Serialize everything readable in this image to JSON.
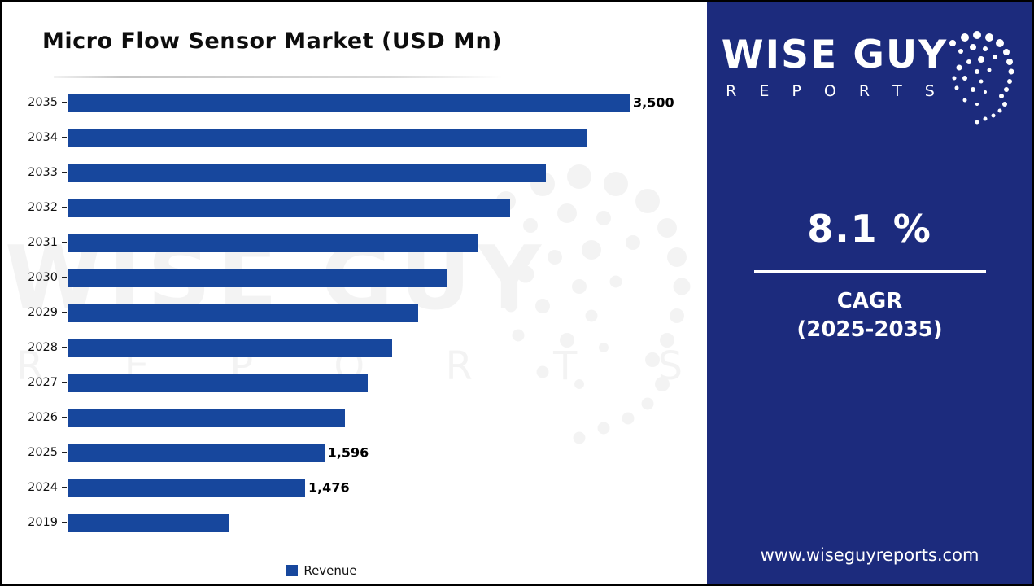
{
  "chart": {
    "title": "Micro Flow Sensor Market (USD Mn)",
    "legend_label": "Revenue"
  },
  "chart_data": {
    "type": "bar",
    "orientation": "horizontal",
    "title": "Micro Flow Sensor Market (USD Mn)",
    "xlabel": "",
    "ylabel": "",
    "categories": [
      "2035",
      "2034",
      "2033",
      "2032",
      "2031",
      "2030",
      "2029",
      "2028",
      "2027",
      "2026",
      "2025",
      "2024",
      "2019"
    ],
    "values": [
      3500,
      3238,
      2979,
      2756,
      2549,
      2358,
      2181,
      2017,
      1866,
      1725,
      1596,
      1476,
      1000
    ],
    "data_labels": [
      "3,500",
      "",
      "",
      "",
      "",
      "",
      "",
      "",
      "",
      "",
      "1,596",
      "1,476",
      ""
    ],
    "xlim": [
      0,
      3500
    ],
    "grid": false,
    "bar_color": "#17479d",
    "legend": [
      "Revenue"
    ],
    "legend_position": "bottom"
  },
  "sidebar": {
    "background": "#1c2b7d",
    "logo_line1": "WISE GUY",
    "logo_line2": "R E P O R T S",
    "cagr_value": "8.1 %",
    "cagr_label_line1": "CAGR",
    "cagr_label_line2": "(2025-2035)",
    "website": "www.wiseguyreports.com"
  },
  "watermark": {
    "line1": "WISE GUY",
    "line2": "R E P O R T S"
  }
}
